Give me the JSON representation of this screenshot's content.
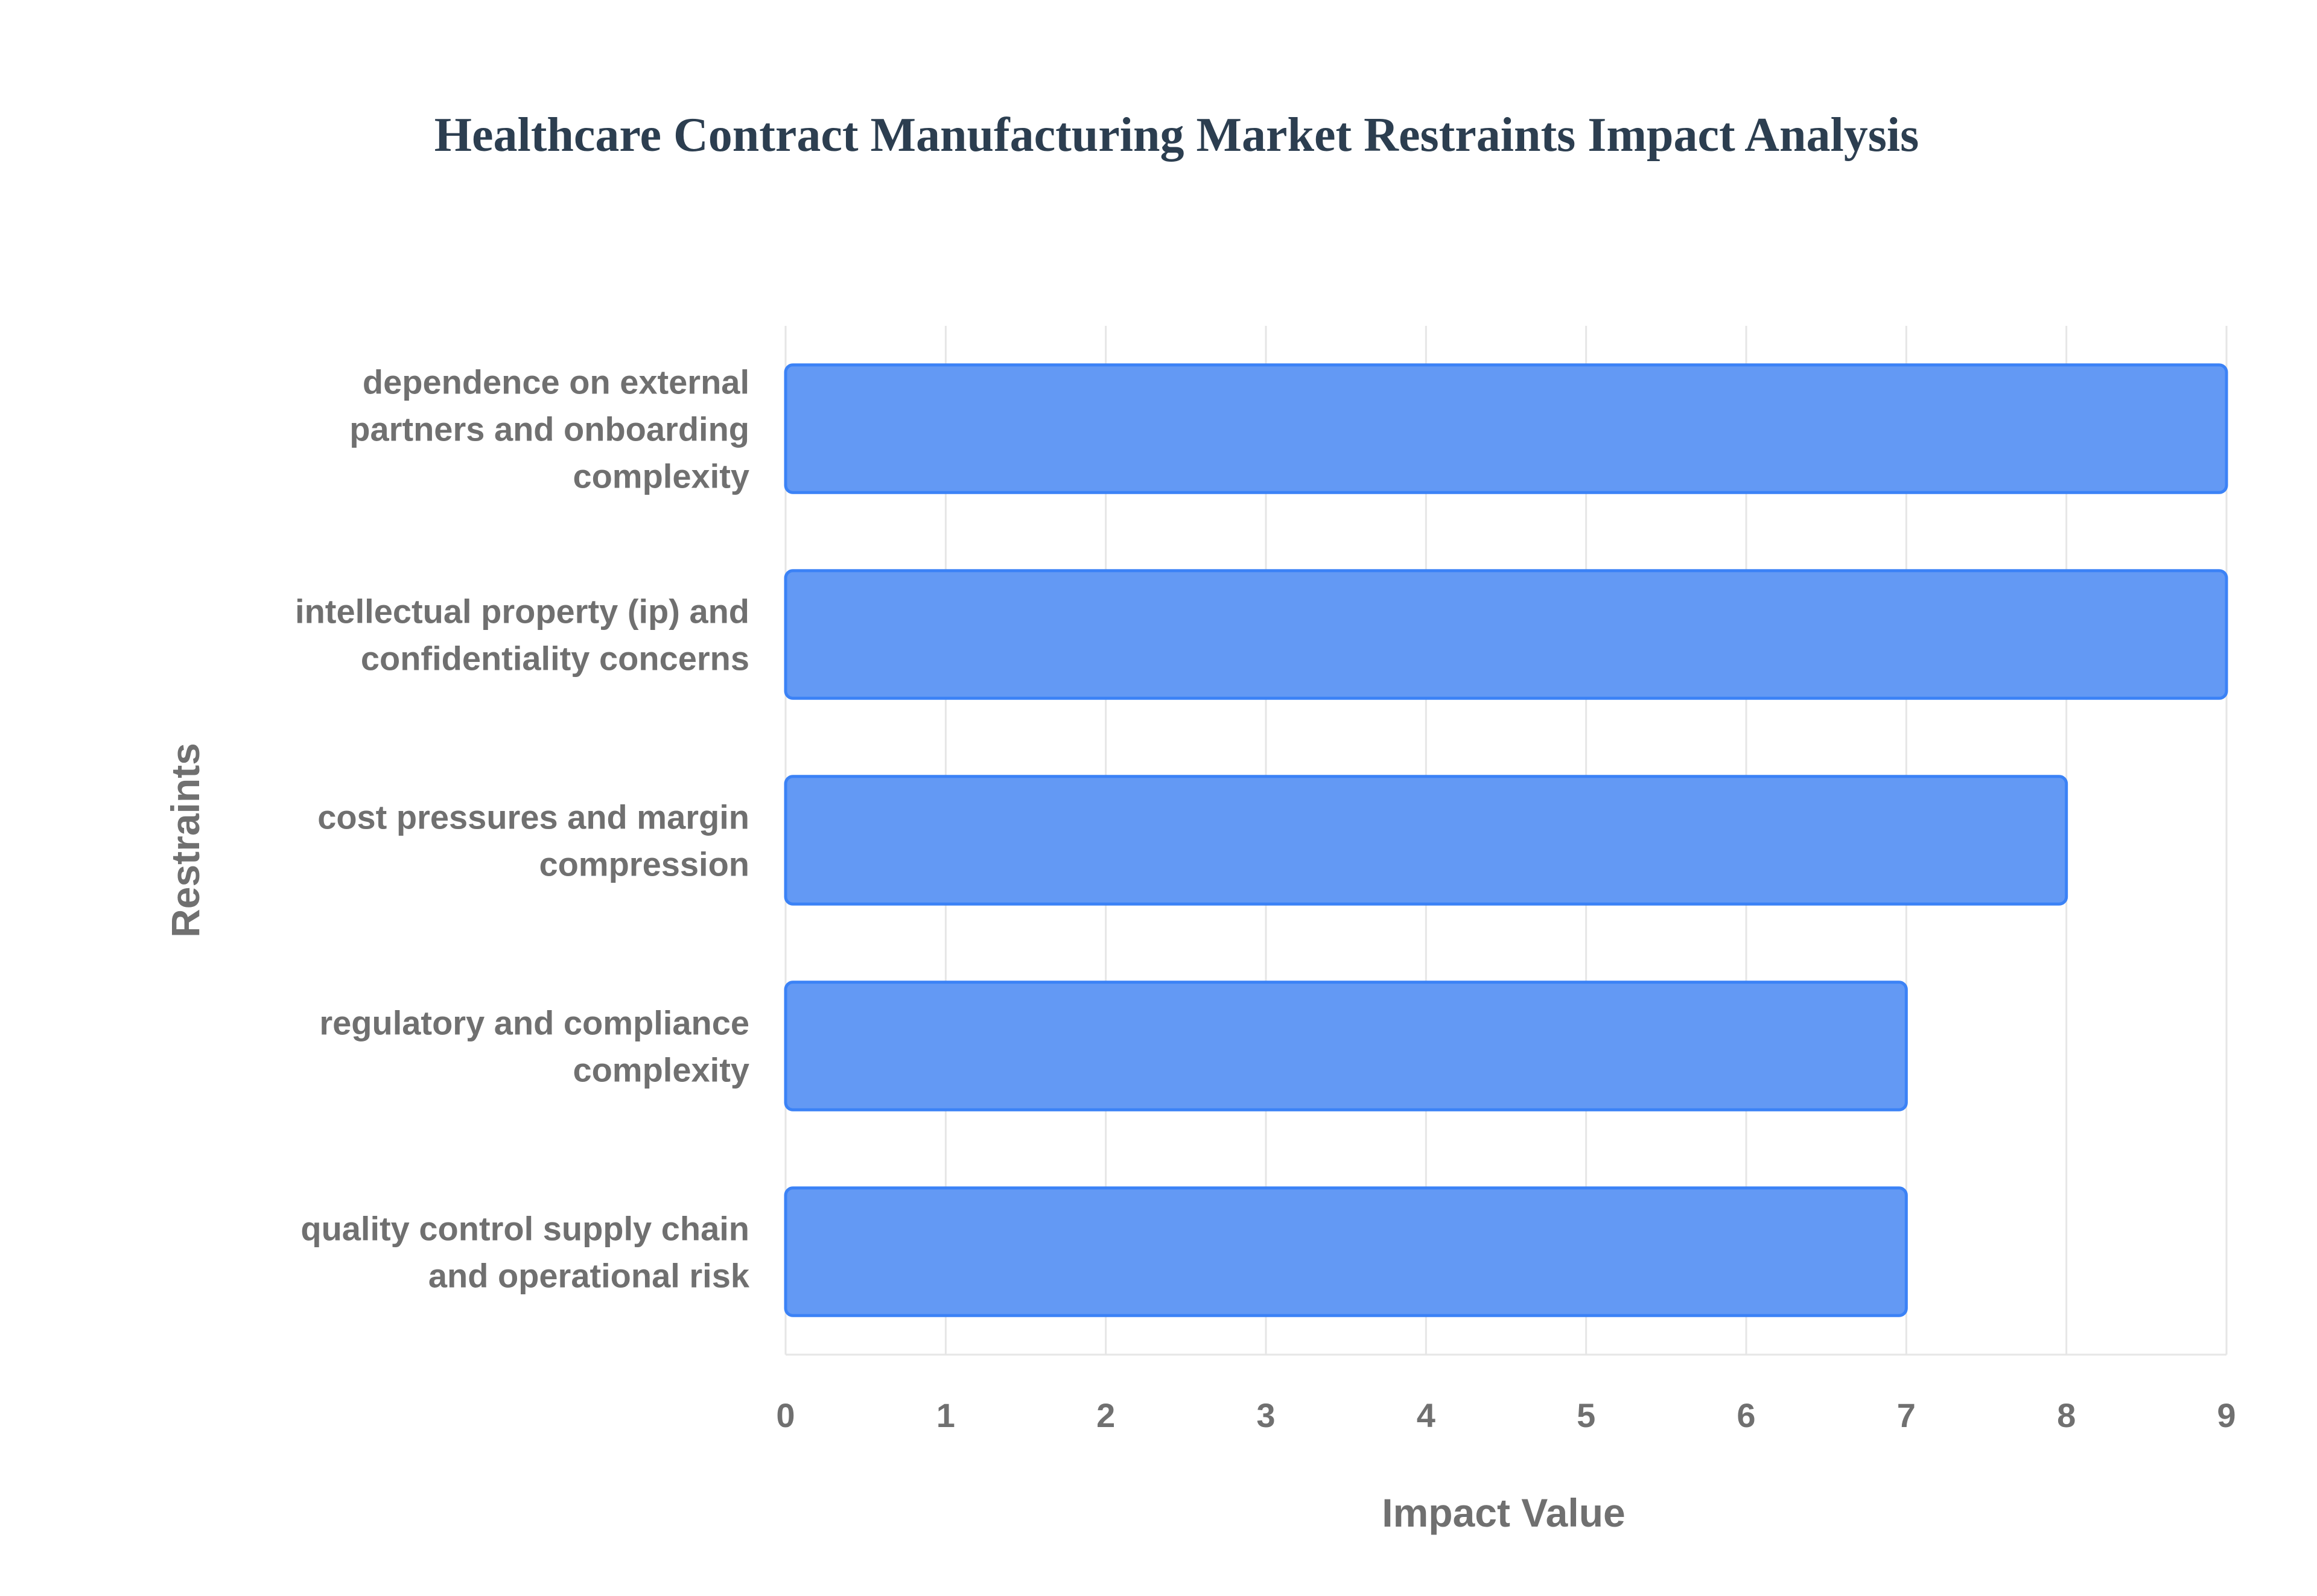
{
  "chart_data": {
    "type": "bar",
    "orientation": "horizontal",
    "title": "Healthcare Contract Manufacturing Market Restraints Impact Analysis",
    "xlabel": "Impact Value",
    "ylabel": "Restraints",
    "xlim": [
      0,
      9
    ],
    "xticks": [
      0,
      1,
      2,
      3,
      4,
      5,
      6,
      7,
      8,
      9
    ],
    "grid": true,
    "categories": [
      [
        "dependence on external",
        "partners and onboarding",
        "complexity"
      ],
      [
        "intellectual property (ip) and",
        "confidentiality concerns"
      ],
      [
        "cost pressures and margin",
        "compression"
      ],
      [
        "regulatory and compliance",
        "complexity"
      ],
      [
        "quality control supply chain",
        "and operational risk"
      ]
    ],
    "values": [
      9,
      9,
      8,
      7,
      7
    ],
    "colors": {
      "bar_fill": "#6399f4",
      "bar_stroke": "#3b82f6",
      "title": "#2c3e50",
      "axis_text": "#707070",
      "grid": "#e6e6e6"
    }
  }
}
